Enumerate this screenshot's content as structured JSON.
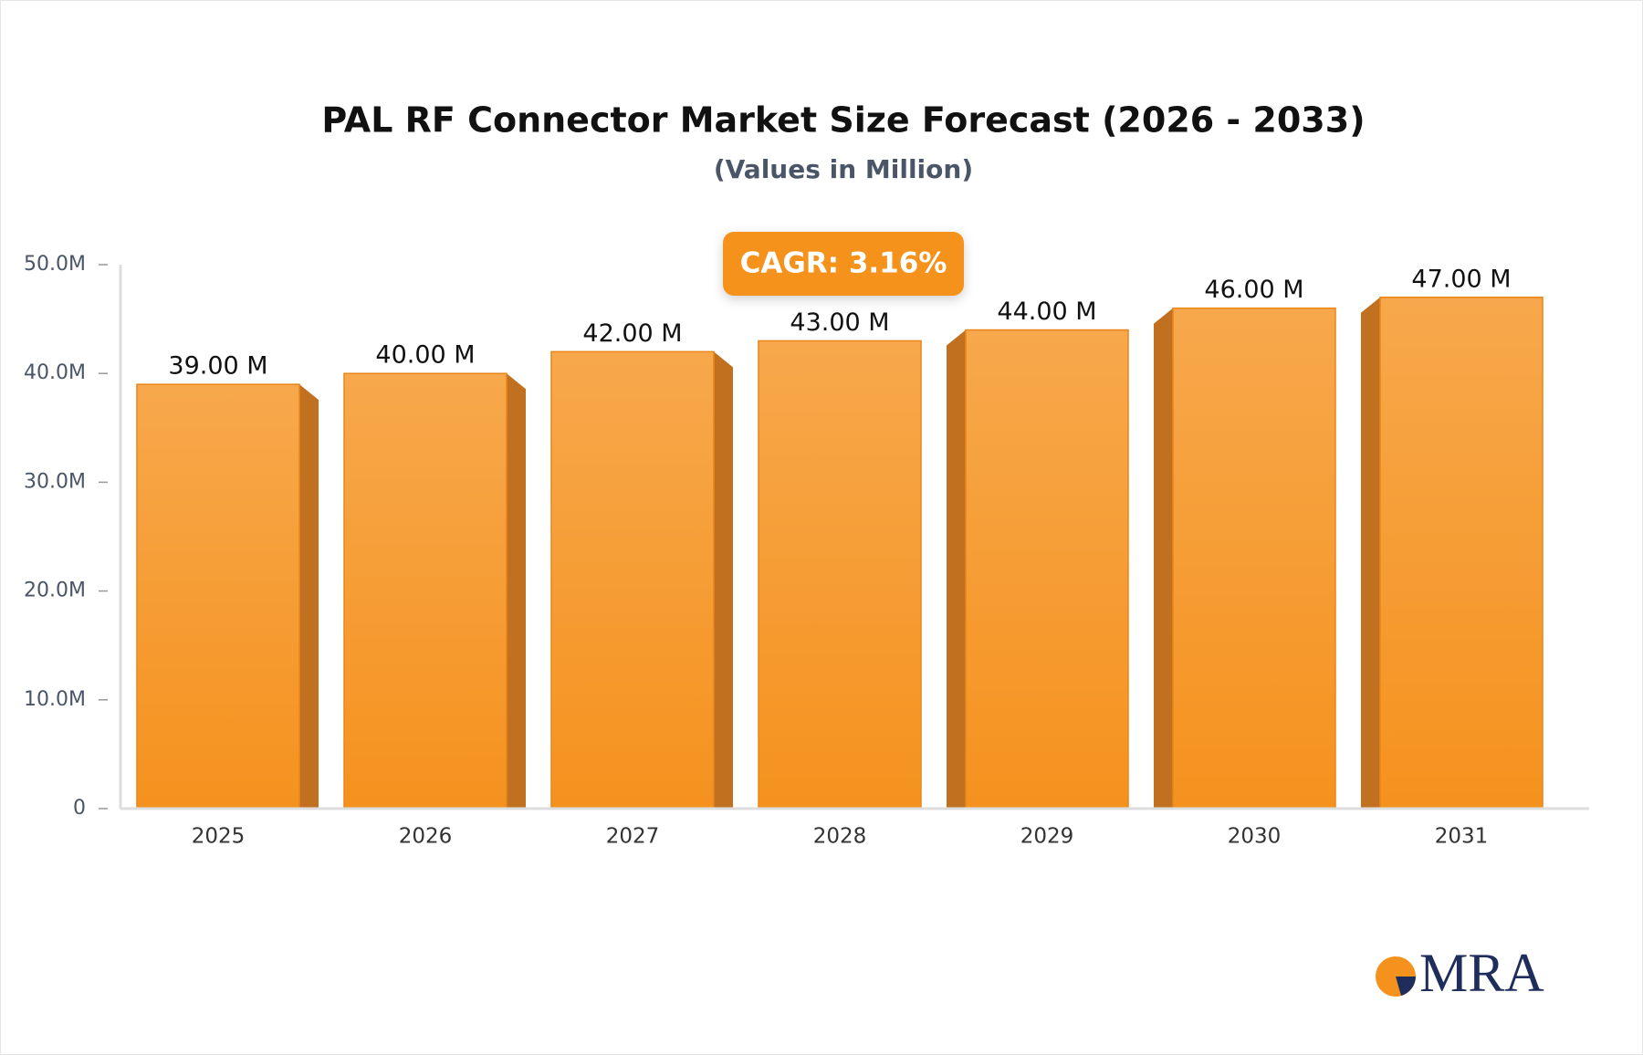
{
  "chart_data": {
    "type": "bar",
    "title": "PAL RF Connector Market Size Forecast (2026 - 2033)",
    "subtitle": "(Values in Million)",
    "annotation": "CAGR: 3.16%",
    "watermark": "MRA",
    "categories": [
      "2025",
      "2026",
      "2027",
      "2028",
      "2029",
      "2030",
      "2031"
    ],
    "values": [
      39,
      40,
      42,
      43,
      44,
      46,
      47
    ],
    "value_labels": [
      "39.00 M",
      "40.00 M",
      "42.00 M",
      "43.00 M",
      "44.00 M",
      "46.00 M",
      "47.00 M"
    ],
    "color": "#f5921e",
    "ylim": [
      0,
      50
    ],
    "yticks": [
      0,
      {
        "value": 10,
        "label": "10.0M"
      },
      {
        "value": 20,
        "label": "20.0M"
      },
      {
        "value": 30,
        "label": "30.0M"
      },
      {
        "value": 40,
        "label": "40.0M"
      },
      {
        "value": 50,
        "label": "50.0M"
      }
    ],
    "grid": false
  }
}
